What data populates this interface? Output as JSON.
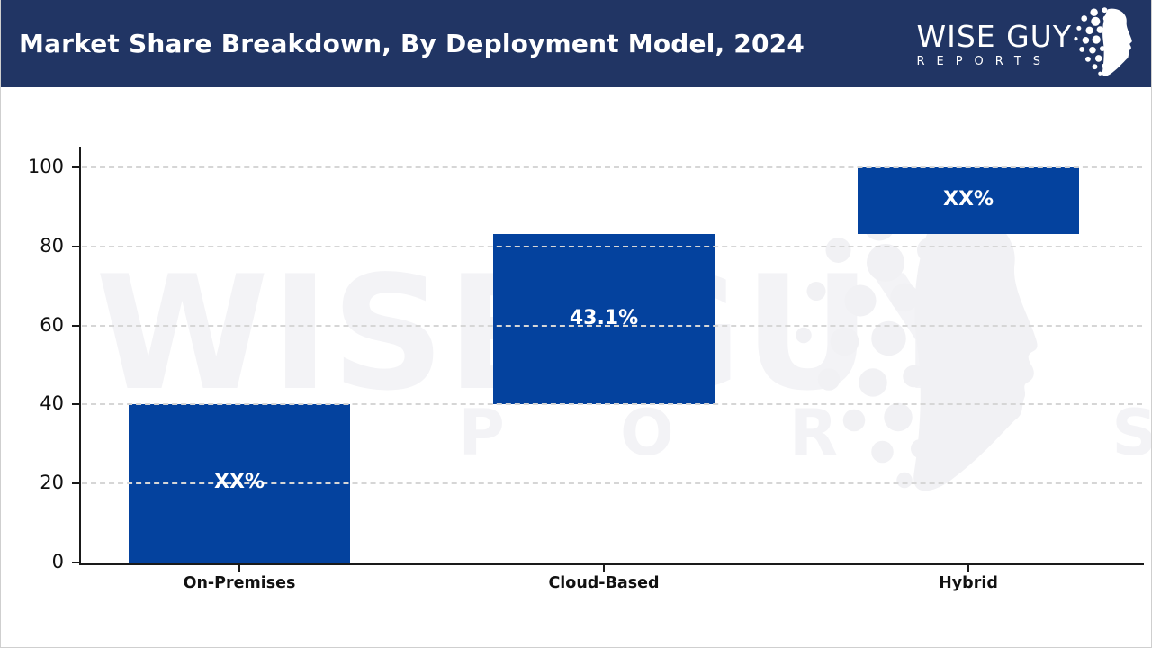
{
  "header": {
    "bg_color": "#213564",
    "logo": {
      "line1": "WISE GUY",
      "line2": "REPORTS"
    }
  },
  "watermark": {
    "line1": "WISE GUY",
    "line2": "R E P O R T S"
  },
  "chart_data": {
    "type": "bar",
    "subtype": "waterfall",
    "title": "Market Share Breakdown, By Deployment Model, 2024",
    "xlabel": "",
    "ylabel": "",
    "categories": [
      "On-Premises",
      "Cloud-Based",
      "Hybrid"
    ],
    "bars": [
      {
        "category": "On-Premises",
        "start": 0,
        "end": 40,
        "value": 40,
        "label": "XX%"
      },
      {
        "category": "Cloud-Based",
        "start": 40,
        "end": 83.1,
        "value": 43.1,
        "label": "43.1%"
      },
      {
        "category": "Hybrid",
        "start": 83.1,
        "end": 100,
        "value": 16.9,
        "label": "XX%"
      }
    ],
    "yticks": [
      0,
      20,
      40,
      60,
      80,
      100
    ],
    "ylim": [
      0,
      105
    ],
    "grid": "dashed horizontal, drawn over bars",
    "legend": "none",
    "bar_color": "#04429e",
    "bar_label_color": "#ffffff",
    "grid_color": "#d6d6d6",
    "axis_color": "#1a1a1a"
  }
}
